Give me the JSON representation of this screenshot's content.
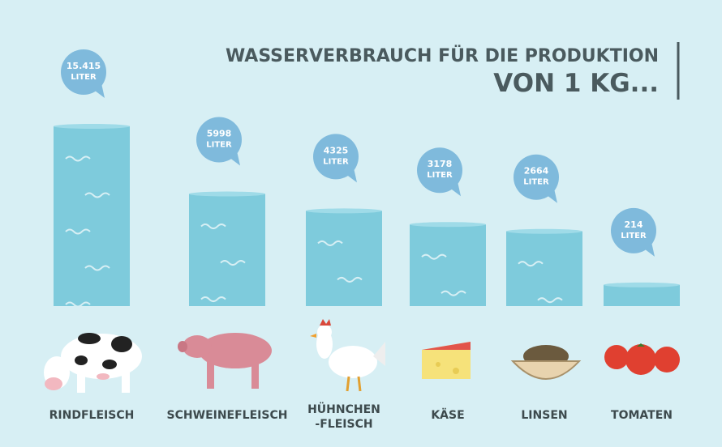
{
  "chart_data": {
    "type": "bar",
    "title": "WASSERVERBRAUCH FÜR DIE PRODUKTION",
    "subtitle": "VON 1 KG...",
    "categories": [
      "RINDFLEISCH",
      "SCHWEINEFLEISCH",
      "HÜHNCHEN\n-FLEISCH",
      "KÄSE",
      "LINSEN",
      "TOMATEN"
    ],
    "values": [
      15415,
      5998,
      4325,
      3178,
      2664,
      214
    ],
    "value_labels": [
      "15.415",
      "5998",
      "4325",
      "3178",
      "2664",
      "214"
    ],
    "unit": "LITER",
    "color": "#7ecbdc"
  }
}
